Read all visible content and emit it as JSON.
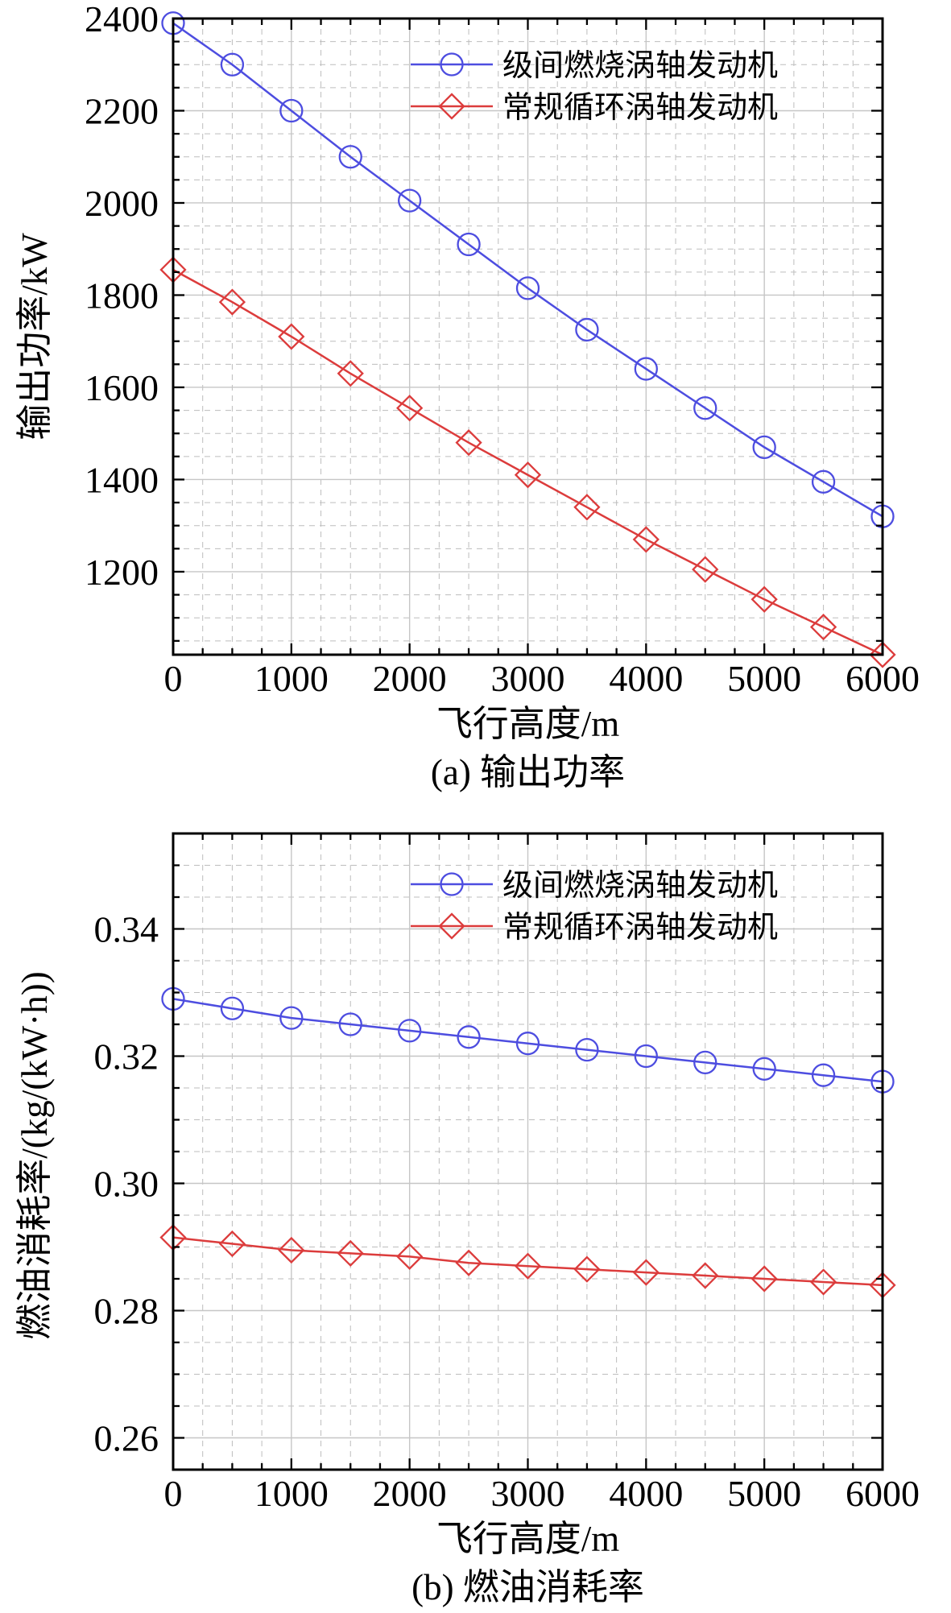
{
  "page": {
    "background": "#ffffff"
  },
  "chart_data": [
    {
      "type": "line",
      "caption": "(a) 输出功率",
      "xlabel": "飞行高度/m",
      "ylabel": "输出功率/kW",
      "x": [
        0,
        500,
        1000,
        1500,
        2000,
        2500,
        3000,
        3500,
        4000,
        4500,
        5000,
        5500,
        6000
      ],
      "xlim": [
        0,
        6000
      ],
      "ylim": [
        1020,
        2400
      ],
      "xticks": [
        0,
        1000,
        2000,
        3000,
        4000,
        5000,
        6000
      ],
      "xtick_labels": [
        "0",
        "1000",
        "2000",
        "3000",
        "4000",
        "5000",
        "6000"
      ],
      "yticks": [
        1200,
        1400,
        1600,
        1800,
        2000,
        2200,
        2400
      ],
      "ytick_labels": [
        "1200",
        "1400",
        "1600",
        "1800",
        "2000",
        "2200",
        "2400"
      ],
      "minor_x_step": 250,
      "minor_y_step": 50,
      "grid": "major-solid-minor-dashed",
      "legend_position": "top-right-inside",
      "series": [
        {
          "name": "级间燃烧涡轴发动机",
          "color": "#4d4de0",
          "marker": "circle",
          "values": [
            2390,
            2300,
            2200,
            2100,
            2005,
            1910,
            1815,
            1725,
            1640,
            1555,
            1470,
            1395,
            1320
          ]
        },
        {
          "name": "常规循环涡轴发动机",
          "color": "#dc3c3c",
          "marker": "diamond",
          "values": [
            1855,
            1785,
            1710,
            1630,
            1555,
            1480,
            1410,
            1340,
            1270,
            1205,
            1140,
            1080,
            1020
          ]
        }
      ]
    },
    {
      "type": "line",
      "caption": "(b) 燃油消耗率",
      "xlabel": "飞行高度/m",
      "ylabel": "燃油消耗率/(kg/(kW·h))",
      "x": [
        0,
        500,
        1000,
        1500,
        2000,
        2500,
        3000,
        3500,
        4000,
        4500,
        5000,
        5500,
        6000
      ],
      "xlim": [
        0,
        6000
      ],
      "ylim": [
        0.255,
        0.355
      ],
      "xticks": [
        0,
        1000,
        2000,
        3000,
        4000,
        5000,
        6000
      ],
      "xtick_labels": [
        "0",
        "1000",
        "2000",
        "3000",
        "4000",
        "5000",
        "6000"
      ],
      "yticks": [
        0.26,
        0.28,
        0.3,
        0.32,
        0.34
      ],
      "ytick_labels": [
        "0.26",
        "0.28",
        "0.30",
        "0.32",
        "0.34"
      ],
      "minor_x_step": 250,
      "minor_y_step": 0.005,
      "grid": "major-solid-minor-dashed",
      "legend_position": "top-right-inside",
      "series": [
        {
          "name": "级间燃烧涡轴发动机",
          "color": "#4d4de0",
          "marker": "circle",
          "values": [
            0.329,
            0.3275,
            0.326,
            0.325,
            0.324,
            0.323,
            0.322,
            0.321,
            0.32,
            0.319,
            0.318,
            0.317,
            0.316
          ]
        },
        {
          "name": "常规循环涡轴发动机",
          "color": "#dc3c3c",
          "marker": "diamond",
          "values": [
            0.2915,
            0.2905,
            0.2895,
            0.289,
            0.2885,
            0.2875,
            0.287,
            0.2865,
            0.286,
            0.2855,
            0.285,
            0.2845,
            0.284
          ]
        }
      ]
    }
  ]
}
